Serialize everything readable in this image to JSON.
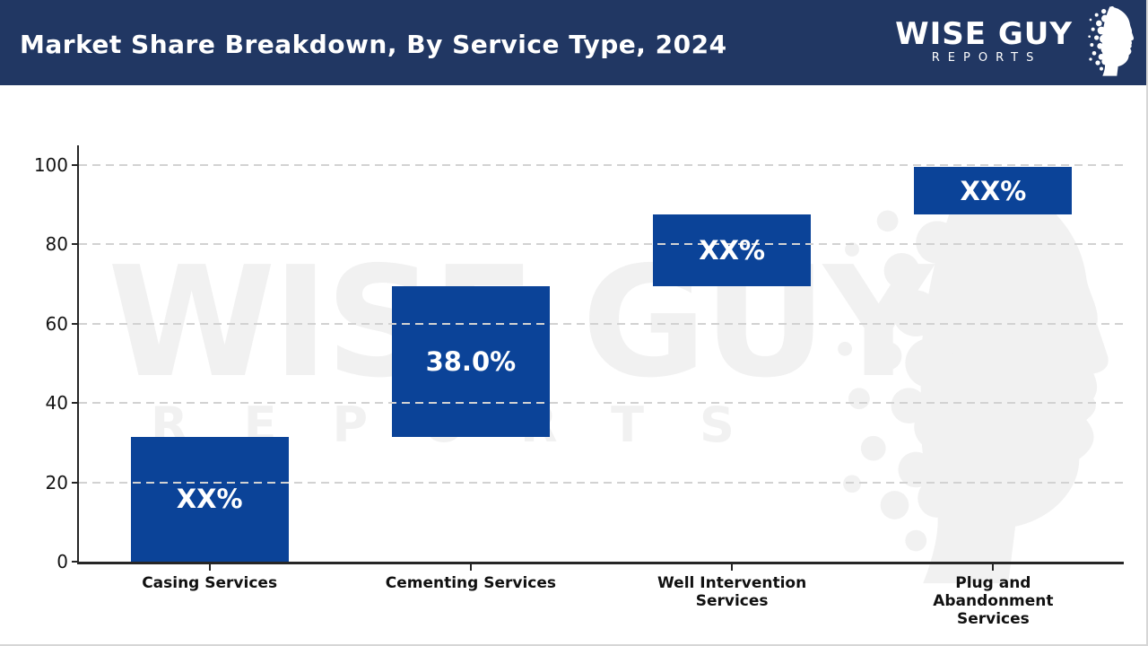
{
  "header": {
    "title": "Market Share Breakdown, By Service Type, 2024"
  },
  "brand": {
    "name": "WISE GUY",
    "sub": "REPORTS"
  },
  "watermark": {
    "name": "WISE GUY",
    "sub": "REPORTS"
  },
  "chart_data": {
    "type": "bar",
    "variant": "floating-waterfall",
    "title": "Market Share Breakdown, By Service Type, 2024",
    "xlabel": "",
    "ylabel": "",
    "yticks": [
      0,
      20,
      40,
      60,
      80,
      100
    ],
    "ylim": [
      0,
      105
    ],
    "grid": "horizontal-dashed",
    "legend": null,
    "bar_color": "#0b4398",
    "bar_label_color": "#ffffff",
    "categories": [
      {
        "name": "Casing Services",
        "lines": [
          "Casing Services"
        ]
      },
      {
        "name": "Cementing Services",
        "lines": [
          "Cementing Services"
        ]
      },
      {
        "name": "Well Intervention Services",
        "lines": [
          "Well Intervention",
          "Services"
        ]
      },
      {
        "name": "Plug and Abandonment Services",
        "lines": [
          "Plug and",
          "Abandonment",
          "Services"
        ]
      }
    ],
    "segments": [
      {
        "category": "Casing Services",
        "start": 0,
        "end": 31.5,
        "label": "XX%",
        "value": null
      },
      {
        "category": "Cementing Services",
        "start": 31.5,
        "end": 69.5,
        "label": "38.0%",
        "value": 38.0
      },
      {
        "category": "Well Intervention Services",
        "start": 69.5,
        "end": 87.5,
        "label": "XX%",
        "value": null
      },
      {
        "category": "Plug and Abandonment Services",
        "start": 87.5,
        "end": 99.5,
        "label": "XX%",
        "value": null
      }
    ]
  },
  "colors": {
    "header_bg": "#213763",
    "bar": "#0b4398",
    "axis": "#262626",
    "grid": "#d2d2d2",
    "watermark": "#f1f1f1",
    "title_text": "#ffffff",
    "tick_text": "#141414"
  }
}
